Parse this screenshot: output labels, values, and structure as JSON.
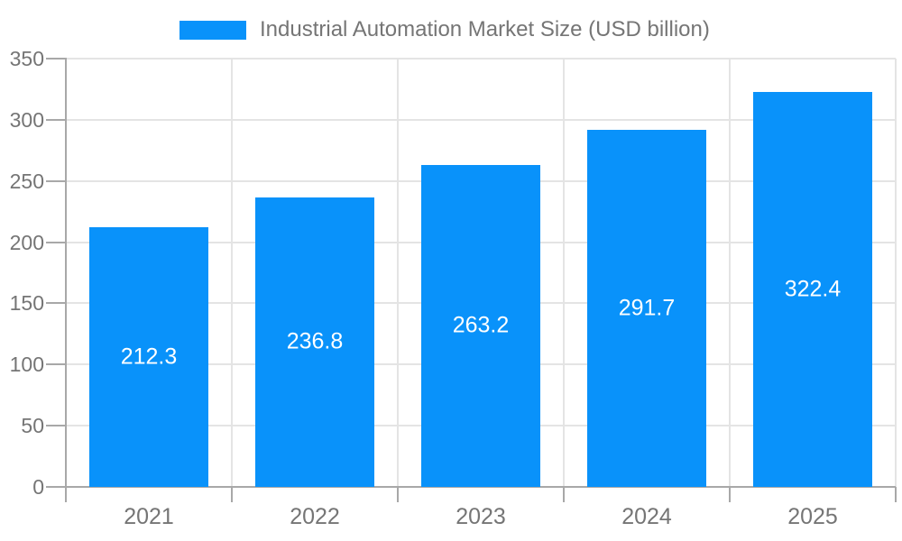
{
  "chart_data": {
    "type": "bar",
    "title": "Industrial Automation Market Size (USD billion)",
    "categories": [
      "2021",
      "2022",
      "2023",
      "2024",
      "2025"
    ],
    "values": [
      212.3,
      236.8,
      263.2,
      291.7,
      322.4
    ],
    "value_labels": [
      "212.3",
      "236.8",
      "263.2",
      "291.7",
      "322.4"
    ],
    "xlabel": "",
    "ylabel": "",
    "ylim": [
      0,
      350
    ],
    "ytick_step": 50,
    "yticks": [
      0,
      50,
      100,
      150,
      200,
      250,
      300,
      350
    ],
    "grid": true,
    "legend_position": "top-center",
    "colors": {
      "bar": "#0992fa",
      "value_label": "#ffffff",
      "axis_text": "#757575",
      "legend_text": "#757575",
      "gridline": "#e4e4e4",
      "axis_line": "#a8a8a8",
      "tick": "#a8a8a8",
      "background": "#ffffff"
    }
  }
}
